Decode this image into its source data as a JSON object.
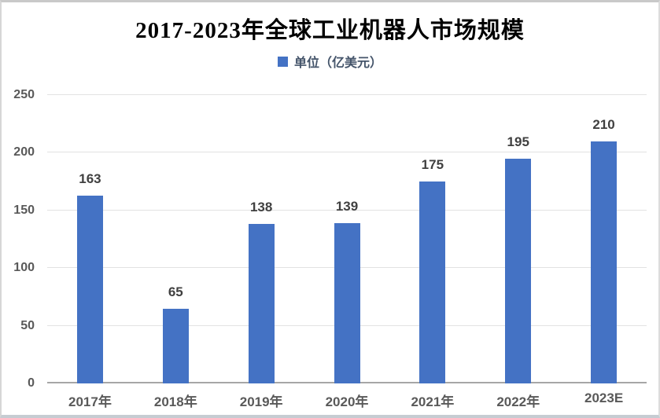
{
  "title": "2017-2023年全球工业机器人市场规模",
  "legend": {
    "label": "单位（亿美元）",
    "swatch_color": "#4472C4"
  },
  "chart_data": {
    "type": "bar",
    "title": "2017-2023年全球工业机器人市场规模",
    "categories": [
      "2017年",
      "2018年",
      "2019年",
      "2020年",
      "2021年",
      "2022年",
      "2023E"
    ],
    "series": [
      {
        "name": "单位（亿美元）",
        "values": [
          163,
          65,
          138,
          139,
          175,
          195,
          210
        ]
      }
    ],
    "data_labels": [
      163,
      65,
      138,
      139,
      175,
      195,
      210
    ],
    "xlabel": "",
    "ylabel": "",
    "ylim": [
      0,
      250
    ],
    "yticks": [
      0,
      50,
      100,
      150,
      200,
      250
    ],
    "grid": true,
    "legend_position": "top-center"
  },
  "colors": {
    "bar": "#4472C4",
    "title_text": "#000000",
    "legend_text": "#44546A",
    "axis_label_text": "#595959",
    "data_label_text": "#404040",
    "gridline": "#E2E2E2",
    "axis_line": "#A6A6A6",
    "background": "#FFFFFF"
  }
}
